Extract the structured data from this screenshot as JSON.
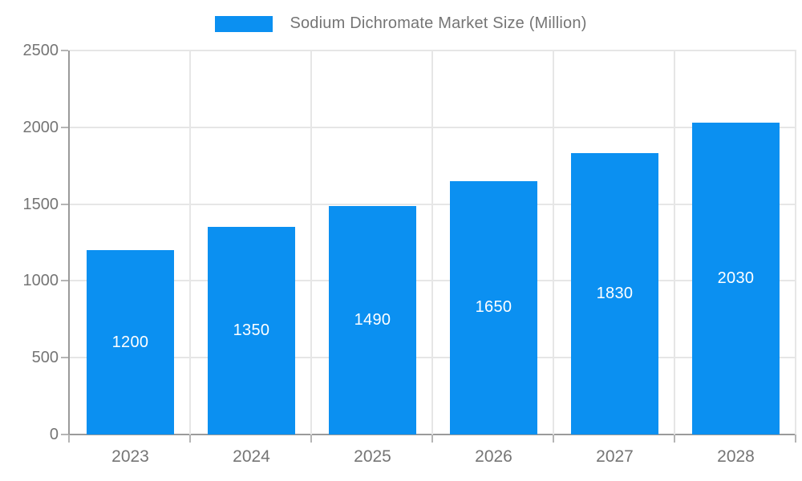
{
  "legend": {
    "label": "Sodium Dichromate Market Size (Million)",
    "swatch_color": "#0b90f1"
  },
  "chart_data": {
    "type": "bar",
    "title": "Sodium Dichromate Market Size (Million)",
    "categories": [
      "2023",
      "2024",
      "2025",
      "2026",
      "2027",
      "2028"
    ],
    "values": [
      1200,
      1350,
      1490,
      1650,
      1830,
      2030
    ],
    "series": [
      {
        "name": "Sodium Dichromate Market Size (Million)",
        "values": [
          1200,
          1350,
          1490,
          1650,
          1830,
          2030
        ]
      }
    ],
    "xlabel": "",
    "ylabel": "",
    "ylim": [
      0,
      2500
    ],
    "yticks": [
      0,
      500,
      1000,
      1500,
      2000,
      2500
    ],
    "grid": true,
    "legend_position": "top-center",
    "bar_color": "#0b90f1",
    "value_label_color": "#ffffff",
    "axis_text_color": "#757575",
    "value_labels_shown": true
  }
}
